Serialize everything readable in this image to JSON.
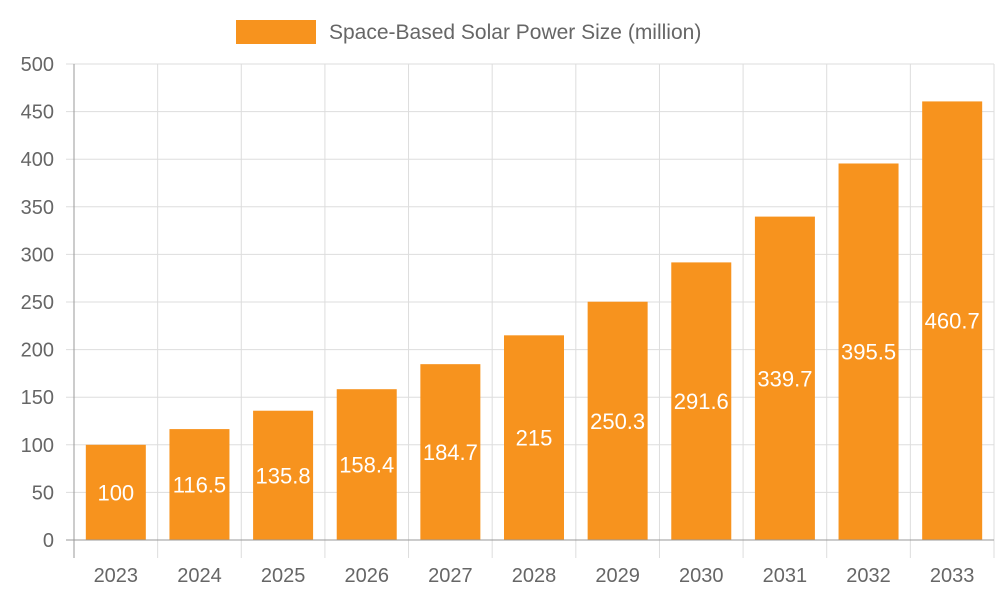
{
  "chart_data": {
    "type": "bar",
    "categories": [
      "2023",
      "2024",
      "2025",
      "2026",
      "2027",
      "2028",
      "2029",
      "2030",
      "2031",
      "2032",
      "2033"
    ],
    "series": [
      {
        "name": "Space-Based Solar Power Size (million)",
        "values": [
          100,
          116.5,
          135.8,
          158.4,
          184.7,
          215,
          250.3,
          291.6,
          339.7,
          395.5,
          460.7
        ],
        "color": "#F7931E"
      }
    ],
    "ylim": [
      0,
      500
    ],
    "yticks": [
      0,
      50,
      100,
      150,
      200,
      250,
      300,
      350,
      400,
      450,
      500
    ],
    "grid": true,
    "legend_position": "top",
    "data_labels": true,
    "data_label_color": "#FFFFFF",
    "grid_color": "#DDDDDD",
    "tick_label_color": "#666666"
  }
}
